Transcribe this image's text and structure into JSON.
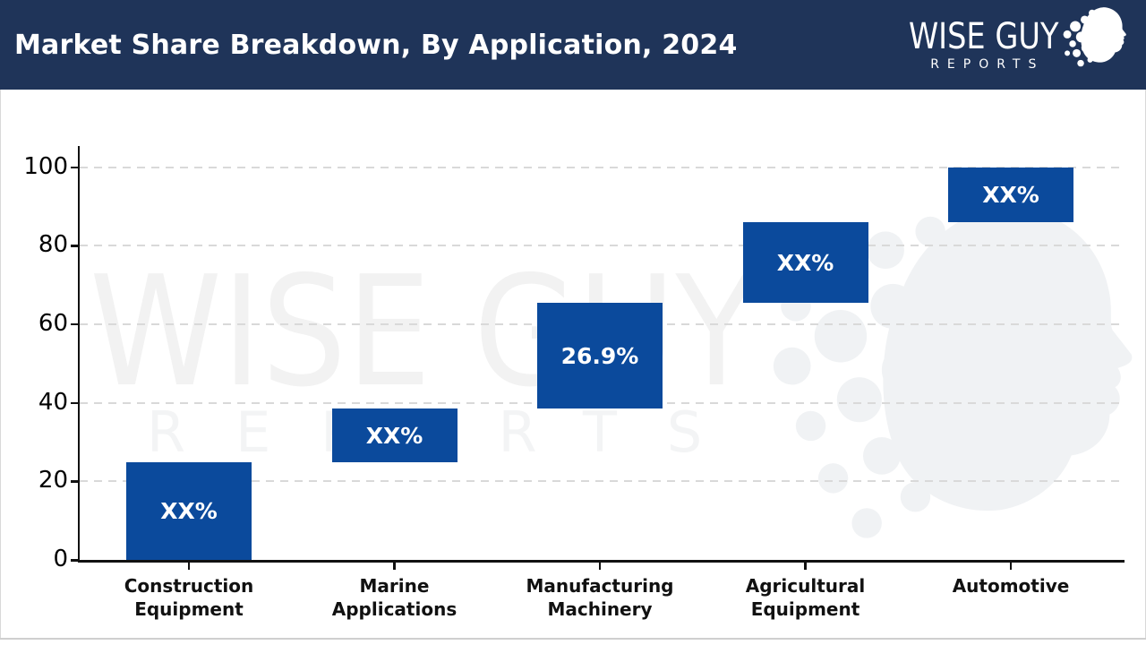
{
  "header": {
    "title": "Market Share Breakdown, By Application, 2024",
    "bg_color": "#1f3459",
    "logo": {
      "line1": "WISE GUY",
      "line2": "REPORTS"
    }
  },
  "watermark": {
    "line1": "WISE GUY",
    "line2": "REPORTS"
  },
  "chart_data": {
    "type": "bar",
    "subtype": "waterfall",
    "title": "Market Share Breakdown, By Application, 2024",
    "xlabel": "",
    "ylabel": "",
    "categories": [
      "Construction Equipment",
      "Marine Applications",
      "Manufacturing Machinery",
      "Agricultural Equipment",
      "Automotive"
    ],
    "category_label_lines": [
      [
        "Construction",
        "Equipment"
      ],
      [
        "Marine",
        "Applications"
      ],
      [
        "Manufacturing",
        "Machinery"
      ],
      [
        "Agricultural",
        "Equipment"
      ],
      [
        "Automotive"
      ]
    ],
    "segments": [
      {
        "category": "Construction Equipment",
        "start": 0,
        "end": 24.8,
        "label": "XX%"
      },
      {
        "category": "Marine Applications",
        "start": 24.8,
        "end": 38.5,
        "label": "XX%"
      },
      {
        "category": "Manufacturing Machinery",
        "start": 38.5,
        "end": 65.4,
        "label": "26.9%"
      },
      {
        "category": "Agricultural Equipment",
        "start": 65.4,
        "end": 85.9,
        "label": "XX%"
      },
      {
        "category": "Automotive",
        "start": 85.9,
        "end": 100,
        "label": "XX%"
      }
    ],
    "y_ticks": [
      0,
      20,
      40,
      60,
      80,
      100
    ],
    "ylim": [
      0,
      105
    ],
    "grid": true,
    "legend": "none",
    "bar_color": "#0b4a9c",
    "gridline_color": "#d9d9d9",
    "value_label_color": "#ffffff"
  }
}
